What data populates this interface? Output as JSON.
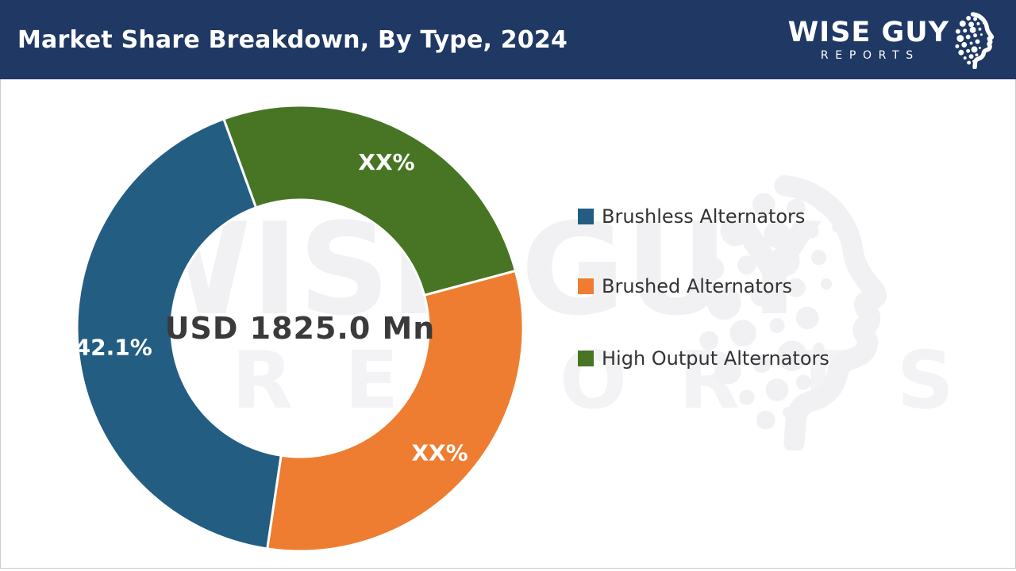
{
  "header": {
    "title": "Market Share Breakdown, By Type, 2024",
    "bg_color": "#1f3864",
    "logo": {
      "line1": "WISE GUY",
      "line2": "REPORTS"
    }
  },
  "chart_data": {
    "type": "pie",
    "subtype": "donut",
    "title": "Market Share Breakdown, By Type, 2024",
    "center_label": "USD 1825.0 Mn",
    "start_angle_deg": 110,
    "direction": "counterclockwise",
    "legend_position": "right",
    "categories": [
      "Brushless Alternators",
      "Brushed Alternators",
      "High Output Alternators"
    ],
    "series": [
      {
        "name": "Brushless Alternators",
        "value_pct": 42.1,
        "display_label": "42.1%",
        "color": "#235d82",
        "value_masked": false
      },
      {
        "name": "Brushed Alternators",
        "value_pct": 31.5,
        "display_label": "XX%",
        "color": "#ee7d31",
        "value_masked": true
      },
      {
        "name": "High Output Alternators",
        "value_pct": 26.4,
        "display_label": "XX%",
        "color": "#477524",
        "value_masked": true
      }
    ]
  },
  "watermark": {
    "line1": "WISE GUY",
    "line2": "R E P O R T S"
  },
  "colors": {
    "header_bg": "#1f3864",
    "slice_blue": "#235d82",
    "slice_orange": "#ee7d31",
    "slice_green": "#477524",
    "center_text": "#3a3a3a",
    "legend_text": "#333333",
    "watermark": "#f1f1f4",
    "frame_border": "#cccccc"
  }
}
